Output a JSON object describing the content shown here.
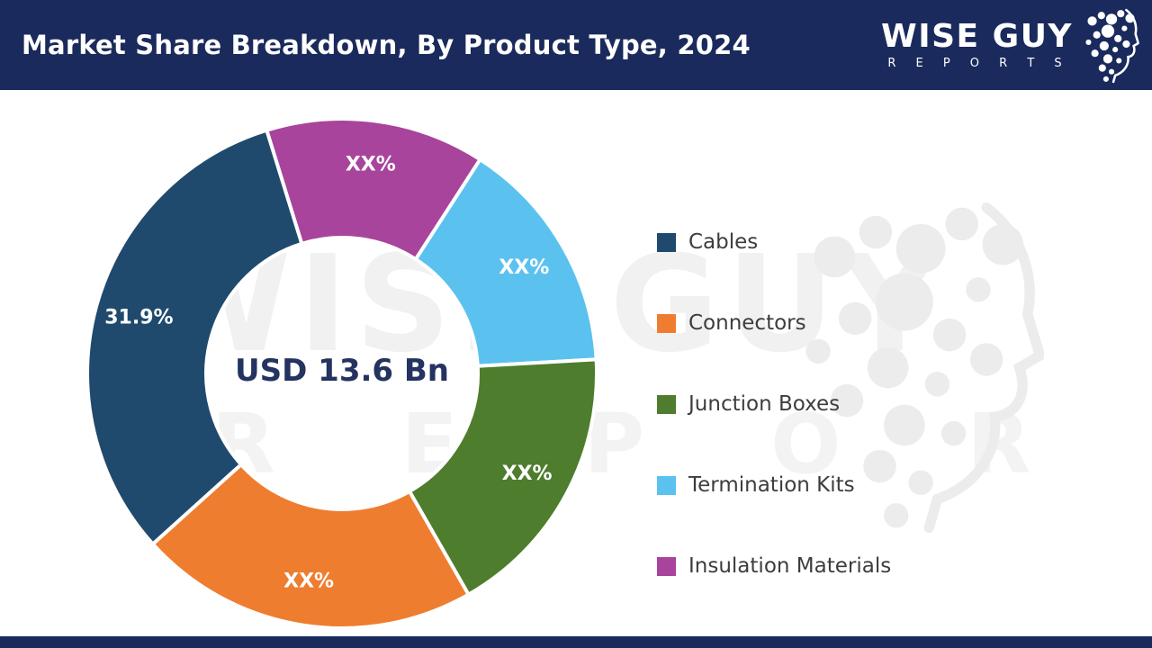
{
  "header": {
    "title": "Market Share Breakdown, By Product Type, 2024",
    "bg_color": "#1a2a5c",
    "logo": {
      "line1": "WISE GUY",
      "line2": "R E P O R T S"
    }
  },
  "watermark": {
    "line1": "WISE GUY",
    "line2": "R E P O R T S"
  },
  "chart_data": {
    "type": "pie",
    "variant": "donut",
    "title": "Market Share Breakdown, By Product Type, 2024",
    "center_label": "USD 13.6 Bn",
    "start_angle_deg": -17.2,
    "legend_position": "right",
    "segments": [
      {
        "name": "Insulation Materials",
        "value": 13.9,
        "label": "XX%",
        "color": "#a8449c"
      },
      {
        "name": "Termination Kits",
        "value": 15.0,
        "label": "XX%",
        "color": "#5bc2ef"
      },
      {
        "name": "Junction Boxes",
        "value": 17.6,
        "label": "XX%",
        "color": "#4e7d2d"
      },
      {
        "name": "Connectors",
        "value": 21.6,
        "label": "XX%",
        "color": "#ef7d2f"
      },
      {
        "name": "Cables",
        "value": 31.9,
        "label": "31.9%",
        "color": "#1f4a6e"
      }
    ],
    "legend": [
      {
        "label": "Cables",
        "color": "#1f4a6e"
      },
      {
        "label": "Connectors",
        "color": "#ef7d2f"
      },
      {
        "label": "Junction Boxes",
        "color": "#4e7d2d"
      },
      {
        "label": "Termination Kits",
        "color": "#5bc2ef"
      },
      {
        "label": "Insulation Materials",
        "color": "#a8449c"
      }
    ]
  }
}
